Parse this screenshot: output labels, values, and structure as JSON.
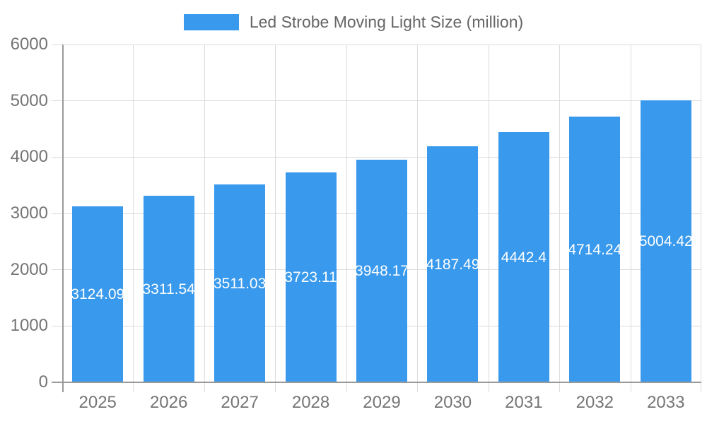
{
  "legend": {
    "label": "Led Strobe Moving Light Size (million)"
  },
  "chart_data": {
    "type": "bar",
    "title": "Led Strobe Moving Light Size (million)",
    "categories": [
      "2025",
      "2026",
      "2027",
      "2028",
      "2029",
      "2030",
      "2031",
      "2032",
      "2033"
    ],
    "series": [
      {
        "name": "Led Strobe Moving Light Size (million)",
        "values": [
          3124.09,
          3311.54,
          3511.03,
          3723.11,
          3948.17,
          4187.49,
          4442.4,
          4714.24,
          5004.42
        ]
      }
    ],
    "value_labels": [
      "3124.09",
      "3311.54",
      "3511.03",
      "3723.11",
      "3948.17",
      "4187.49",
      "4442.4",
      "4714.24",
      "5004.42"
    ],
    "xlabel": "",
    "ylabel": "",
    "ylim": [
      0,
      6000
    ],
    "y_ticks": [
      0,
      1000,
      2000,
      3000,
      4000,
      5000,
      6000
    ],
    "grid": true,
    "legend_position": "top",
    "colors": {
      "bar": "#3999EC",
      "bar_label": "#FFFFFF",
      "axis_text": "#757575",
      "title_text": "#666666",
      "gridline": "#DCDCDC",
      "axis_line": "#9A9A9A"
    }
  }
}
